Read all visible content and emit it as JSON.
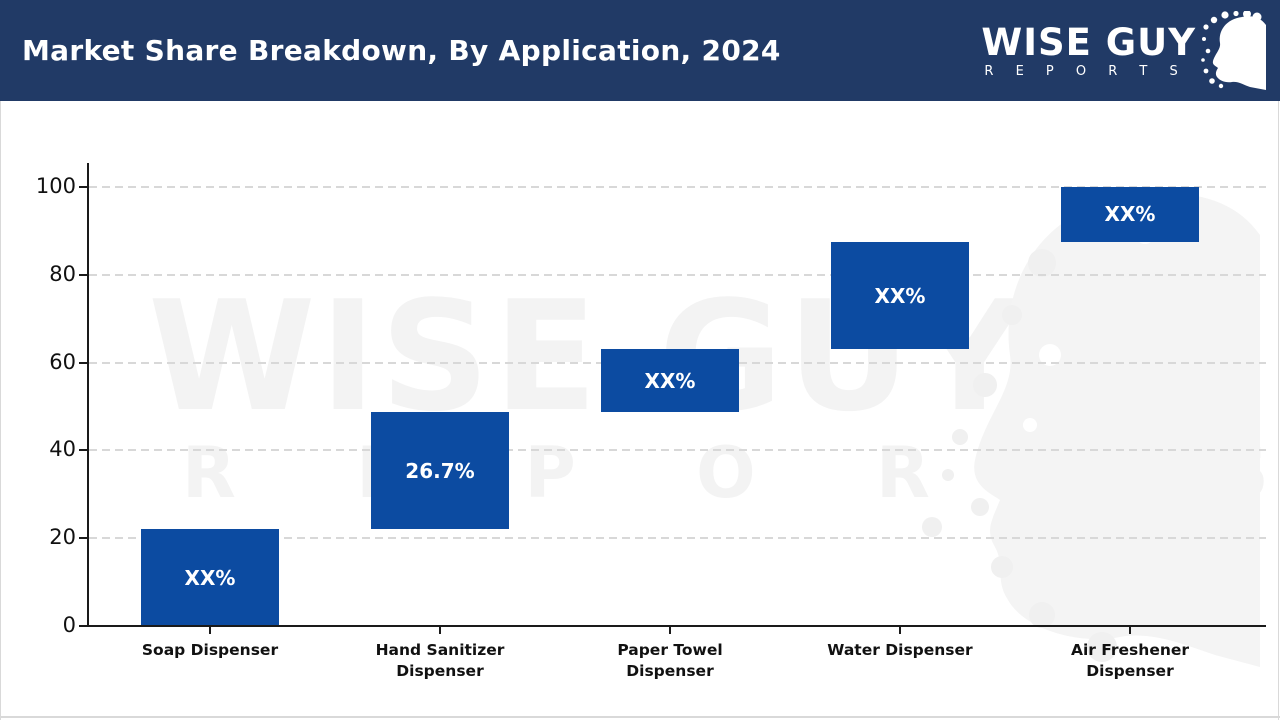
{
  "header": {
    "title": "Market Share Breakdown, By Application, 2024",
    "logo": {
      "line1": "WISE GUY",
      "line2": "R E P O R T S"
    }
  },
  "watermark": {
    "line1": "WISE GUY",
    "line2": "R E P O R T S"
  },
  "colors": {
    "header_bg": "#213a66",
    "bar_color": "#0c4ba1",
    "axis_color": "#1a1a1a",
    "grid_color": "#d8d8d8",
    "tick_label_color": "#111111",
    "bar_label_color": "#ffffff",
    "watermark_color": "#f3f3f3",
    "border_color": "#d9d9d9"
  },
  "chart_data": {
    "type": "bar",
    "subtype": "floating-waterfall",
    "title": "Market Share Breakdown, By Application, 2024",
    "categories": [
      "Soap Dispenser",
      "Hand Sanitizer Dispenser",
      "Paper Towel Dispenser",
      "Water Dispenser",
      "Air Freshener Dispenser"
    ],
    "category_lines": [
      [
        "Soap Dispenser"
      ],
      [
        "Hand Sanitizer",
        "Dispenser"
      ],
      [
        "Paper Towel",
        "Dispenser"
      ],
      [
        "Water Dispenser"
      ],
      [
        "Air Freshener",
        "Dispenser"
      ]
    ],
    "bars": [
      {
        "category": "Soap Dispenser",
        "start": 0,
        "end": 22,
        "label": "XX%"
      },
      {
        "category": "Hand Sanitizer Dispenser",
        "start": 22,
        "end": 48.7,
        "label": "26.7%"
      },
      {
        "category": "Paper Towel Dispenser",
        "start": 48.7,
        "end": 63,
        "label": "XX%"
      },
      {
        "category": "Water Dispenser",
        "start": 63,
        "end": 87.5,
        "label": "XX%"
      },
      {
        "category": "Air Freshener Dispenser",
        "start": 87.5,
        "end": 100,
        "label": "XX%"
      }
    ],
    "ylim": [
      0,
      100
    ],
    "yticks": [
      0,
      20,
      40,
      60,
      80,
      100
    ],
    "xlabel": "",
    "ylabel": "",
    "grid": "horizontal-dashed",
    "legend": "none"
  }
}
